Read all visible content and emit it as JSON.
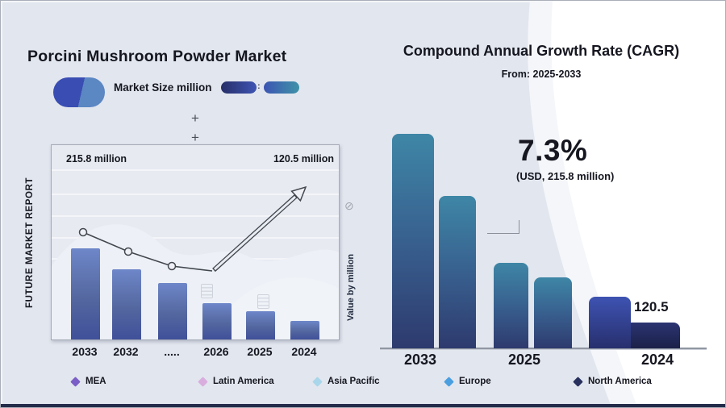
{
  "left": {
    "title": "Porcini Mushroom Powder Market",
    "subtitle_label": "Market Size million",
    "ratio_separator": ":",
    "plus_marks": [
      "+",
      "+"
    ],
    "panel": {
      "annotation_left": "215.8 million",
      "annotation_right": "120.5 million",
      "side_label_left": "FUTURE MARKET REPORT",
      "side_label_right": "Value by million"
    }
  },
  "right": {
    "title": "Compound Annual Growth Rate (CAGR)",
    "subtitle": "From: 2025-2033",
    "cagr_value": "7.3%",
    "cagr_detail": "(USD, 215.8 million)",
    "bar_label": "120.5"
  },
  "icons": {
    "circle_slash": "⊘"
  },
  "legend": [
    {
      "label": "MEA",
      "color": "#7a5ec6"
    },
    {
      "label": "Latin America",
      "color": "#d9aede"
    },
    {
      "label": "Asia Pacific",
      "color": "#a9d6ea"
    },
    {
      "label": "Europe",
      "color": "#4a9fe0"
    },
    {
      "label": "North America",
      "color": "#28305e"
    }
  ],
  "colors": {
    "page_background": "#e2e6ee",
    "left_bar_top": "#6e87c9",
    "left_bar_bottom": "#40509a",
    "right_bar_teal_top": "#3e86a6",
    "right_bar_navy_bottom": "#2e3a6e",
    "accent_bottom_bar": "#232c49"
  },
  "chart_data": [
    {
      "type": "bar",
      "title": "Porcini Mushroom Powder Market - Market Size million",
      "categories": [
        "2033",
        "2032",
        ".....",
        "2026",
        "2025",
        "2024"
      ],
      "values": [
        215.8,
        166,
        134,
        85,
        66,
        43
      ],
      "xlabel": "",
      "ylabel": "Value by million",
      "ylim": [
        0,
        240
      ],
      "grid": true,
      "annotations": [
        "215.8 million",
        "120.5 million"
      ],
      "overlay": {
        "type": "line",
        "description": "declining trend line with 3 circular markers over 2033-2026, then hand-drawn arrow rising to top right toward the 120.5 million annotation"
      }
    },
    {
      "type": "bar",
      "title": "Compound Annual Growth Rate (CAGR)",
      "subtitle": "From: 2025-2033",
      "cagr": "7.3%",
      "note": "(USD, 215.8 million)",
      "categories": [
        "2033",
        "2025",
        "2024"
      ],
      "series": [
        {
          "name": "bar-1",
          "relative_heights": [
            100,
            40,
            24
          ]
        },
        {
          "name": "bar-2",
          "relative_heights": [
            71,
            33,
            12
          ]
        }
      ],
      "data_labels": {
        "2024": "120.5"
      },
      "ylim_relative": [
        0,
        100
      ],
      "legend_position": "none"
    }
  ]
}
